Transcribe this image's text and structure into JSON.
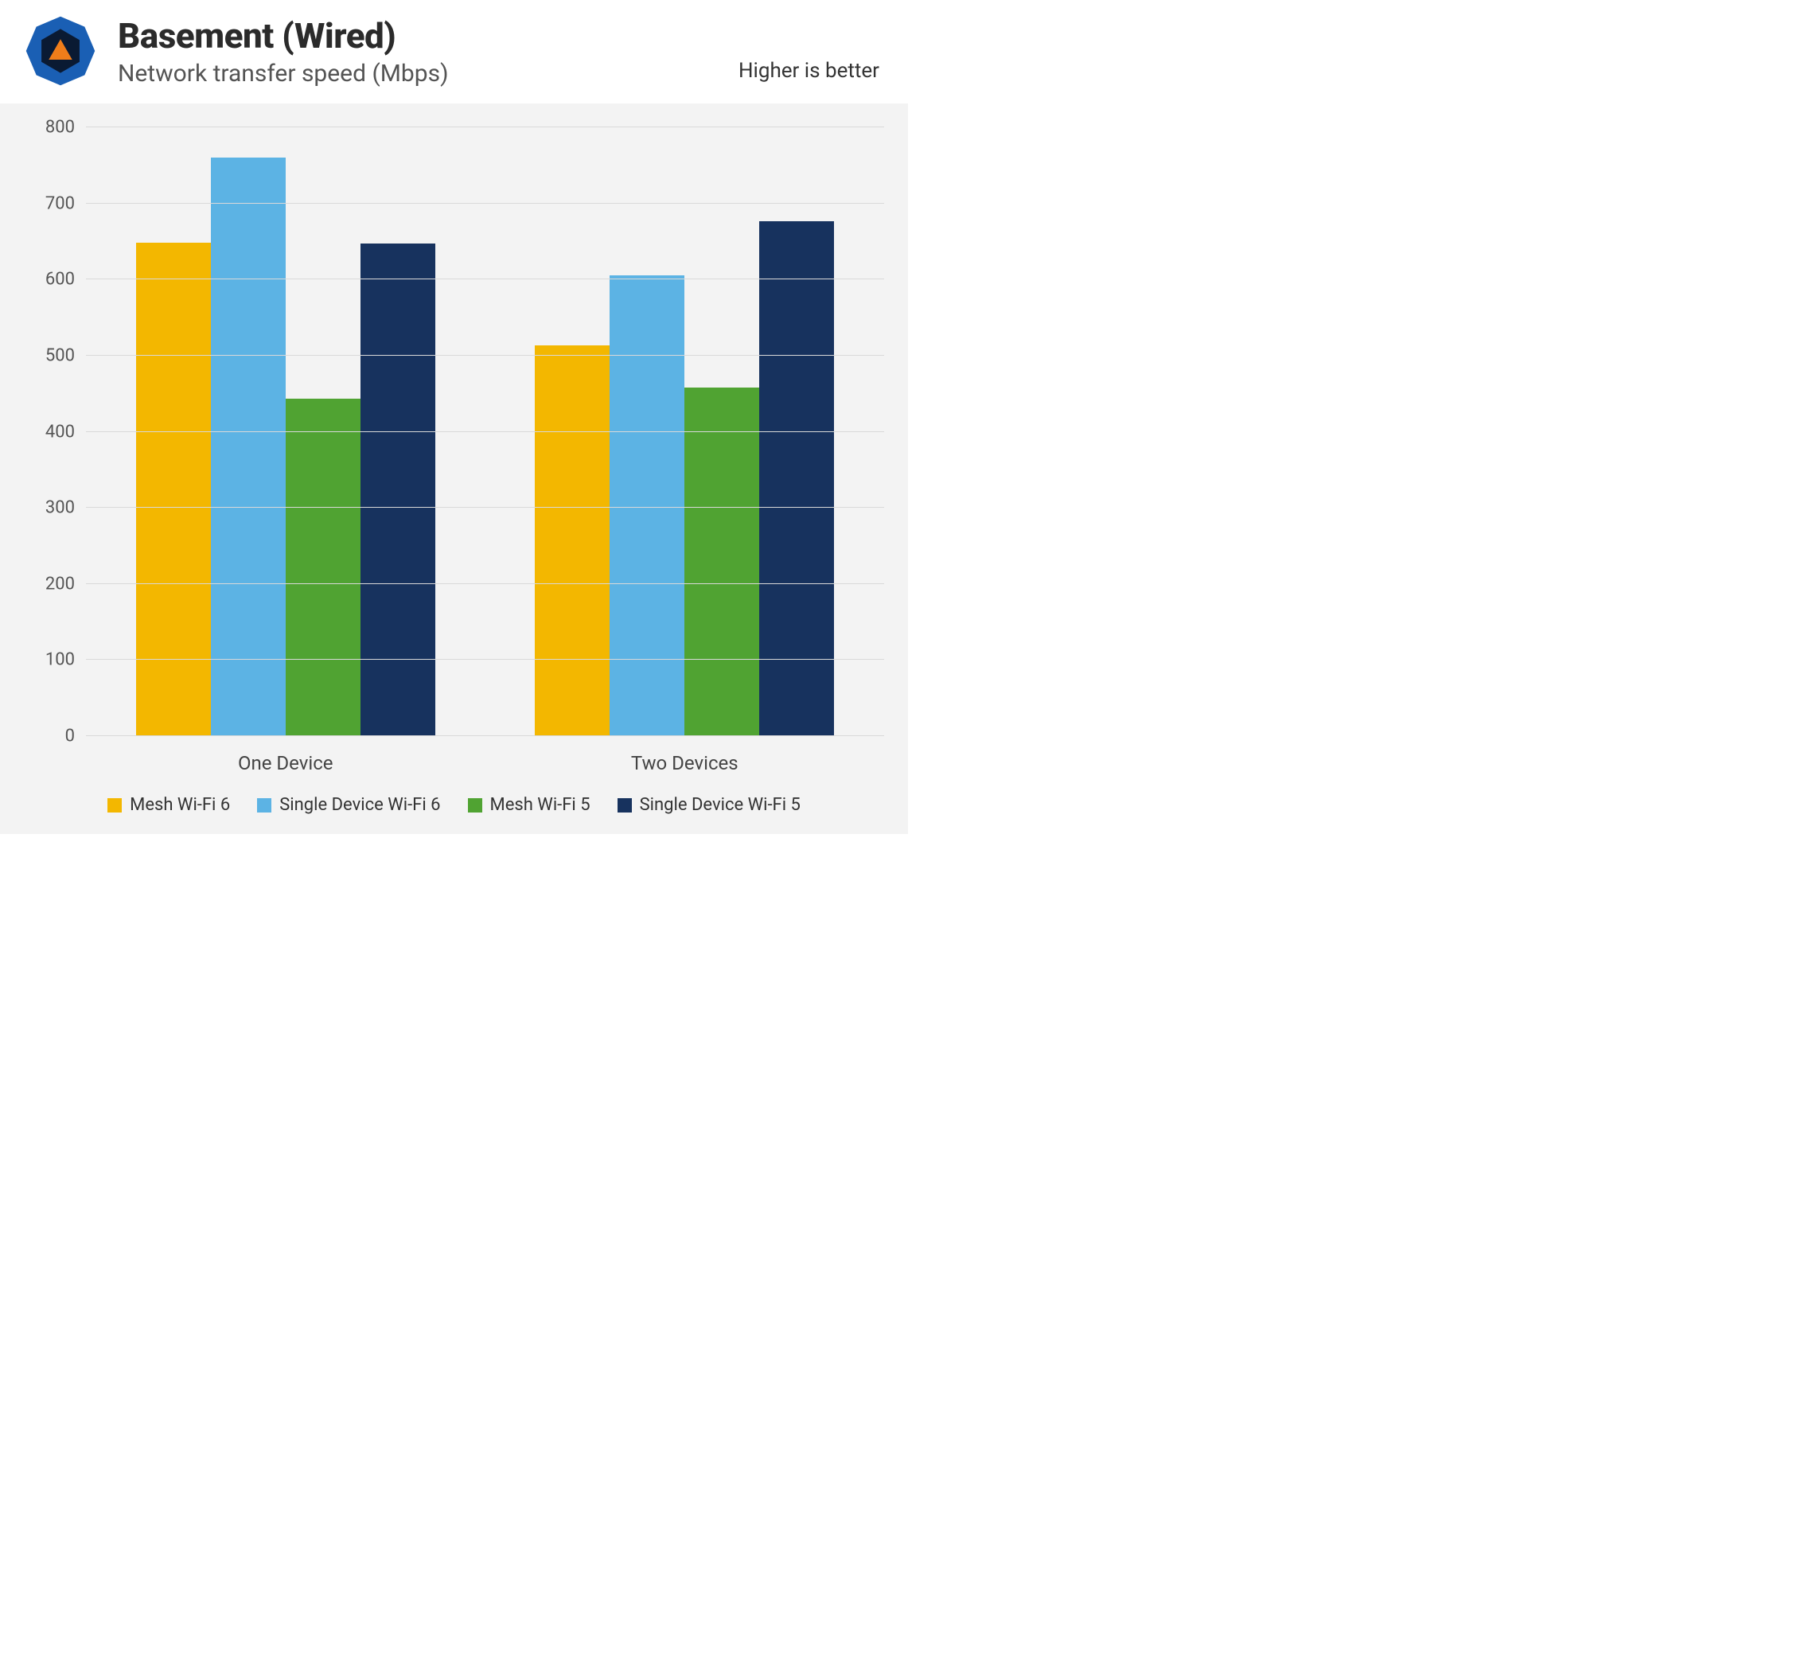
{
  "header": {
    "title": "Basement (Wired)",
    "subtitle": "Network transfer speed (Mbps)",
    "note": "Higher is better"
  },
  "logo": {
    "octagon_color": "#1a5fb4",
    "hexagon_color": "#0a1a33",
    "triangle_color": "#ef7d1a"
  },
  "chart": {
    "type": "bar",
    "background_color": "#f3f3f3",
    "grid_color": "#d9d9d9",
    "ylim": [
      0,
      800
    ],
    "ytick_step": 100,
    "y_ticks": [
      0,
      100,
      200,
      300,
      400,
      500,
      600,
      700,
      800
    ],
    "tick_fontsize": 22,
    "tick_color": "#555555",
    "categories": [
      "One Device",
      "Two Devices"
    ],
    "category_fontsize": 24,
    "series": [
      {
        "name": "Mesh Wi-Fi 6",
        "color": "#f3b700",
        "values": [
          648,
          513
        ]
      },
      {
        "name": "Single Device Wi-Fi 6",
        "color": "#5cb3e4",
        "values": [
          760,
          605
        ]
      },
      {
        "name": "Mesh Wi-Fi 5",
        "color": "#50a332",
        "values": [
          443,
          458
        ]
      },
      {
        "name": "Single Device Wi-Fi 5",
        "color": "#17325e",
        "values": [
          647,
          677
        ]
      }
    ],
    "bar_gap": 0,
    "group_gap_ratio": 0.18
  },
  "legend": {
    "fontsize": 22,
    "swatch_size": 18,
    "text_color": "#333333"
  }
}
